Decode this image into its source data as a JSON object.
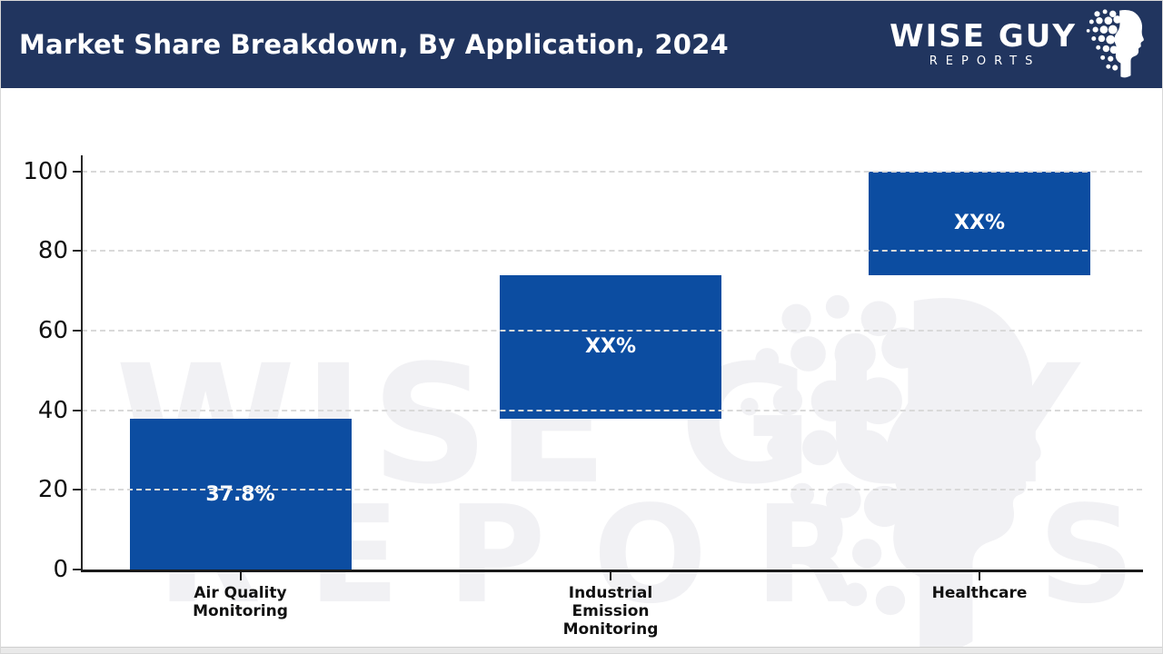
{
  "header": {
    "title": "Market Share Breakdown, By Application, 2024",
    "logo": {
      "line1": "WISE GUY",
      "line2": "REPORTS"
    }
  },
  "watermark": {
    "line1": "WISE GUY",
    "line2": "REPORTS"
  },
  "colors": {
    "header_bg": "#21355f",
    "bar": "#0c4da1",
    "gridline": "#d9d9d9",
    "axis": "#262626",
    "bar_label": "#ffffff",
    "watermark": "#f1f1f4"
  },
  "chart_data": {
    "type": "bar",
    "subtype": "waterfall",
    "title": "Market Share Breakdown, By Application, 2024",
    "categories": [
      "Air Quality Monitoring",
      "Industrial Emission Monitoring",
      "Healthcare"
    ],
    "category_lines": [
      [
        "Air Quality",
        "Monitoring"
      ],
      [
        "Industrial",
        "Emission",
        "Monitoring"
      ],
      [
        "Healthcare"
      ]
    ],
    "series": [
      {
        "name": "Market Share (%)",
        "segments": [
          {
            "category": "Air Quality Monitoring",
            "start": 0,
            "end": 37.8,
            "label": "37.8%"
          },
          {
            "category": "Industrial Emission Monitoring",
            "start": 37.8,
            "end": 74,
            "label": "XX%"
          },
          {
            "category": "Healthcare",
            "start": 74,
            "end": 100,
            "label": "XX%"
          }
        ]
      }
    ],
    "xlabel": "",
    "ylabel": "",
    "ylim": [
      0,
      100
    ],
    "yticks": [
      0,
      20,
      40,
      60,
      80,
      100
    ],
    "grid": "horizontal-dashed",
    "legend": null
  }
}
